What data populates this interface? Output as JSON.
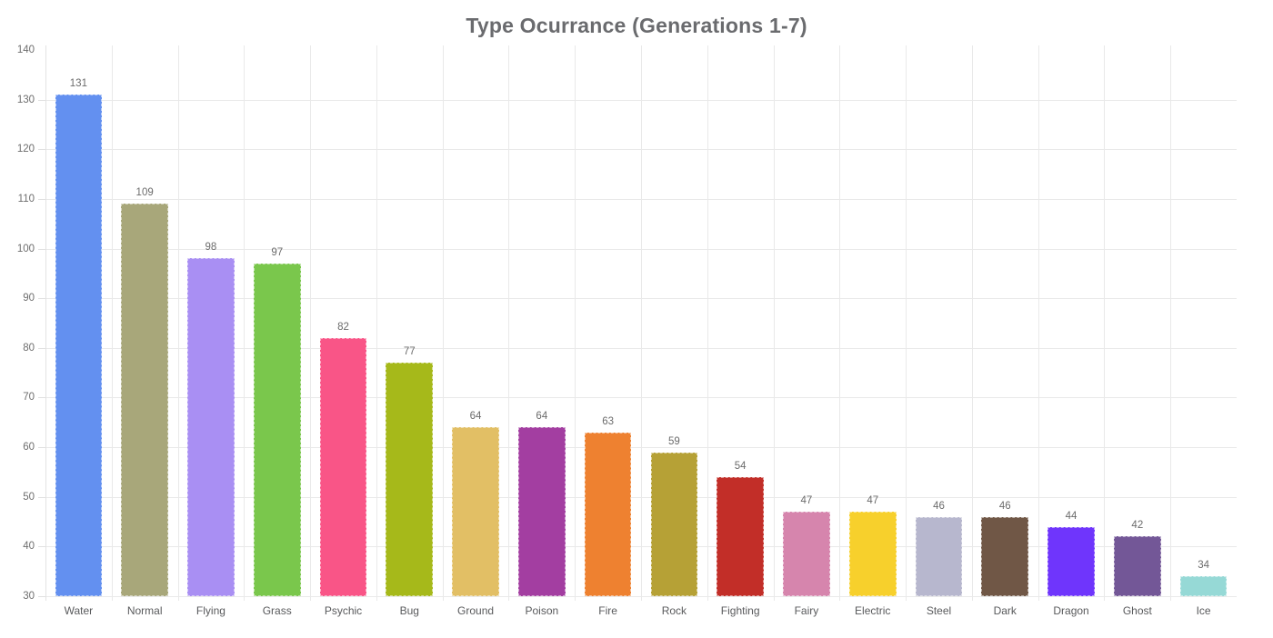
{
  "chart_data": {
    "type": "bar",
    "title": "Type Ocurrance (Generations 1-7)",
    "categories": [
      "Water",
      "Normal",
      "Flying",
      "Grass",
      "Psychic",
      "Bug",
      "Ground",
      "Poison",
      "Fire",
      "Rock",
      "Fighting",
      "Fairy",
      "Electric",
      "Steel",
      "Dark",
      "Dragon",
      "Ghost",
      "Ice"
    ],
    "values": [
      131,
      109,
      98,
      97,
      82,
      77,
      64,
      64,
      63,
      59,
      54,
      47,
      47,
      46,
      46,
      44,
      42,
      34
    ],
    "bar_colors": [
      "#6390F0",
      "#A8A77A",
      "#A98FF3",
      "#7AC74C",
      "#F95587",
      "#A6B91A",
      "#E2BF65",
      "#A33EA1",
      "#EE8130",
      "#B6A136",
      "#C22E28",
      "#D685AD",
      "#F7D02C",
      "#B7B7CE",
      "#705746",
      "#6F35FC",
      "#735797",
      "#96D9D6"
    ],
    "xlabel": "",
    "ylabel": "",
    "ylim": [
      30,
      140
    ],
    "ytick_step": 10,
    "grid": true,
    "legend_position": "none",
    "value_labels_shown": true
  },
  "style": {
    "title_color": "#6a6b6e",
    "grid_color": "#e9e9e9",
    "y_label_color": "#6e6e6e",
    "x_label_color": "#595a5c",
    "value_label_color": "#6b6b6b",
    "background": "#ffffff"
  }
}
